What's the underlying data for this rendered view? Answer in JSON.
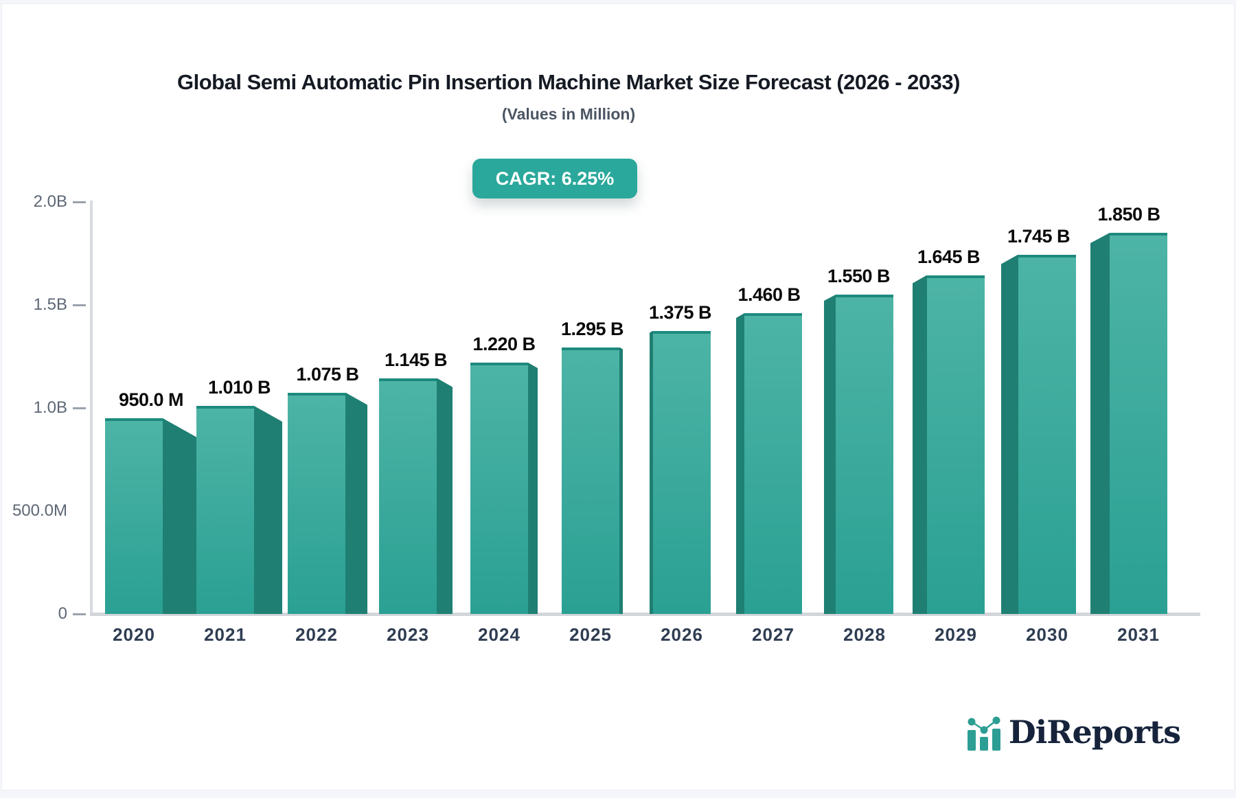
{
  "chart_data": {
    "type": "bar",
    "title": "Global Semi Automatic Pin Insertion Machine Market Size Forecast (2026 - 2033)",
    "subtitle": "(Values in Million)",
    "cagr_badge": "CAGR: 6.25%",
    "categories": [
      "2020",
      "2021",
      "2022",
      "2023",
      "2024",
      "2025",
      "2026",
      "2027",
      "2028",
      "2029",
      "2030",
      "2031"
    ],
    "values_millions": [
      950,
      1010,
      1075,
      1145,
      1220,
      1295,
      1375,
      1460,
      1550,
      1645,
      1745,
      1850
    ],
    "bar_labels": [
      "950.0 M",
      "1.010 B",
      "1.075 B",
      "1.145 B",
      "1.220 B",
      "1.295 B",
      "1.375 B",
      "1.460 B",
      "1.550 B",
      "1.645 B",
      "1.745 B",
      "1.850 B"
    ],
    "y_ticks": [
      {
        "label": "2.0B",
        "value_millions": 2000,
        "dash": true
      },
      {
        "label": "1.5B",
        "value_millions": 1500,
        "dash": true
      },
      {
        "label": "1.0B",
        "value_millions": 1000,
        "dash": true
      },
      {
        "label": "500.0M",
        "value_millions": 500,
        "dash": false
      },
      {
        "label": "0",
        "value_millions": 0,
        "dash": true
      }
    ],
    "ylim": [
      0,
      2000
    ],
    "grid": false,
    "legend": false,
    "colors": {
      "bar_face_top": "#4db4a6",
      "bar_face_bottom": "#2aa093",
      "bar_side": "#1f7f73",
      "bar_cap": "#1d8a7e",
      "badge_bg": "#2aa89b",
      "axis_line": "#d5d8dd",
      "tick_text": "#5d6774",
      "year_text": "#2f3d52",
      "value_text": "#0a0a0a",
      "logo_teal": "#2d9e93",
      "logo_navy": "#16233b"
    }
  },
  "logo": {
    "name": "DiReports"
  }
}
